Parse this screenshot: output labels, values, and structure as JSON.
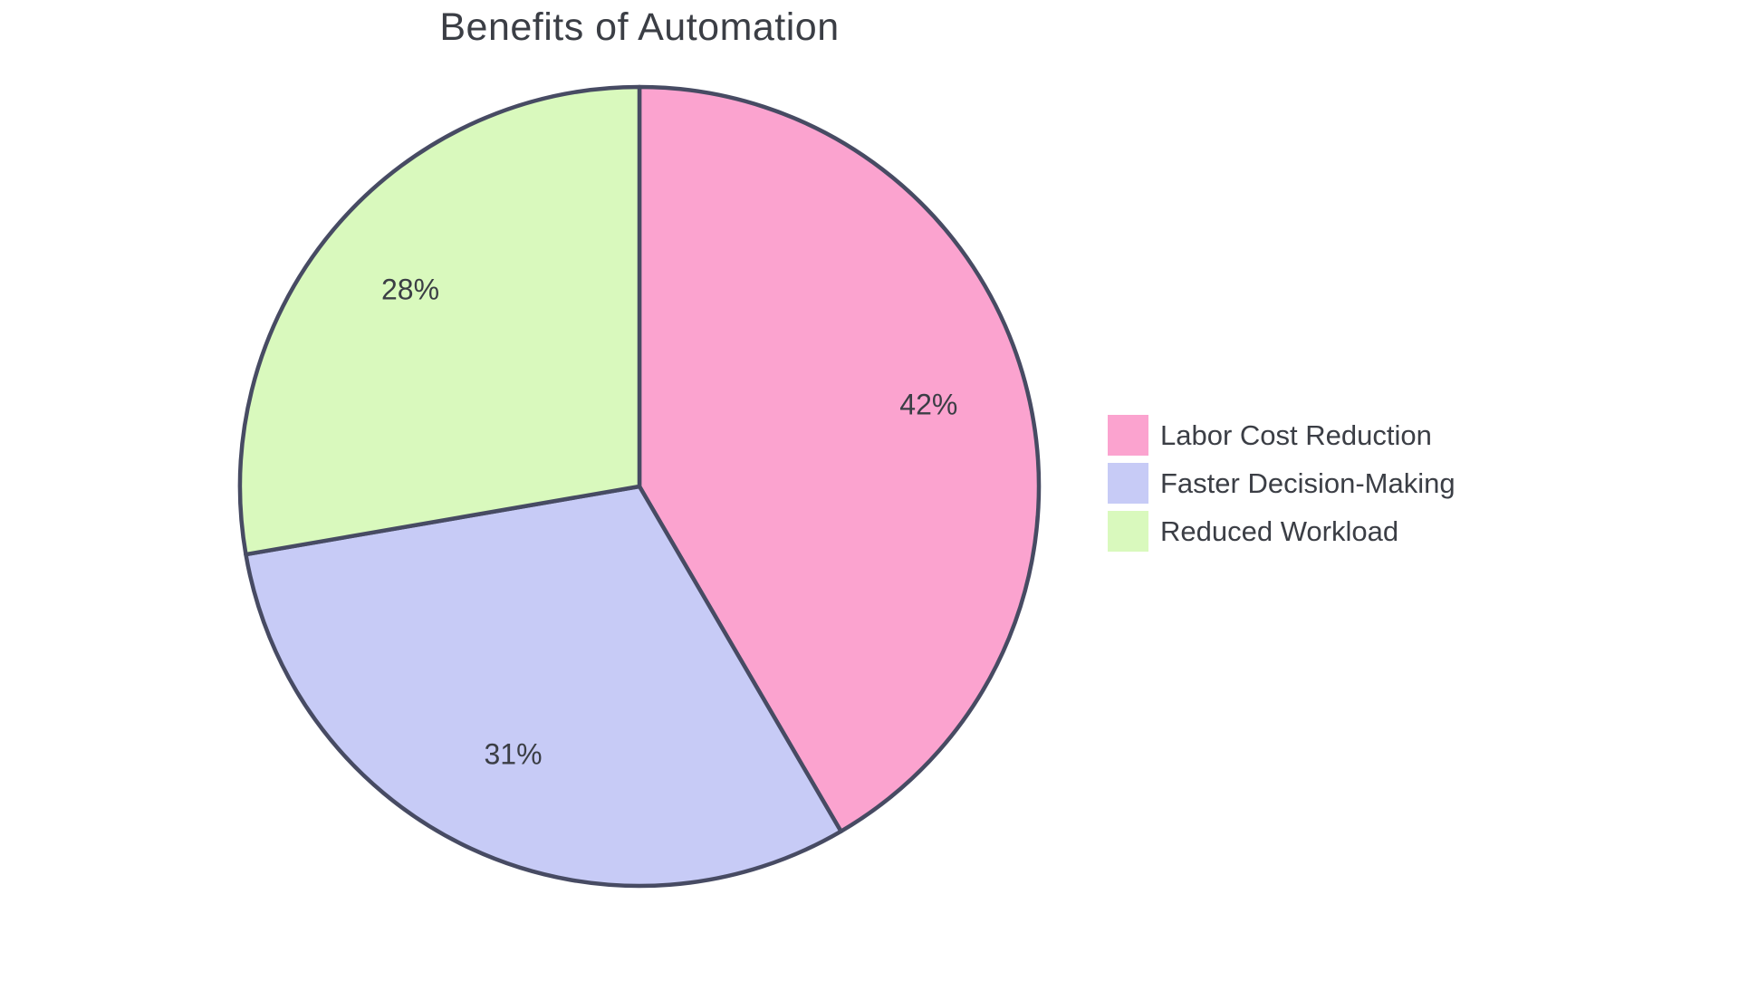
{
  "title": "Benefits of Automation",
  "chart_data": {
    "type": "pie",
    "title": "Benefits of Automation",
    "labels": [
      "Labor Cost Reduction",
      "Faster Decision-Making",
      "Reduced Workload"
    ],
    "values": [
      42,
      31,
      28
    ],
    "percent_labels": [
      "42%",
      "31%",
      "28%"
    ],
    "slice_colors": [
      "#FBA3CF",
      "#C7CBF6",
      "#D9F9BD"
    ],
    "slice_border_color": "#474B63",
    "text_color": "#3B3E45",
    "legend_position": "right",
    "start_angle_deg": 0,
    "direction": "clockwise",
    "percent_label_radius_fraction": 0.75
  }
}
